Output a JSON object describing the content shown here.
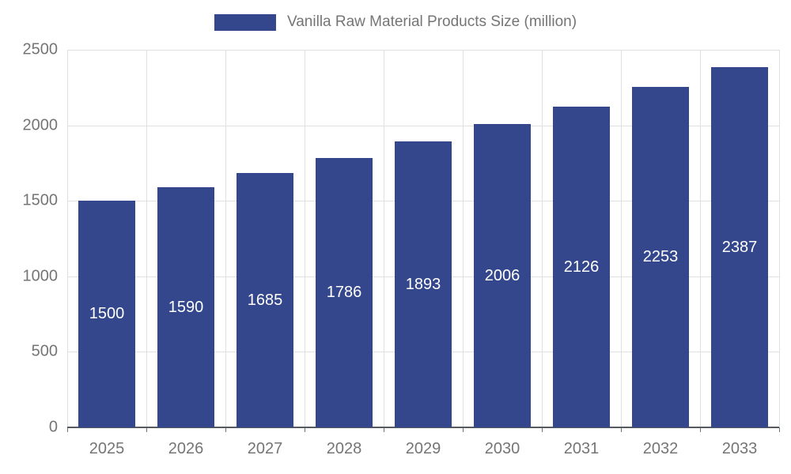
{
  "chart_data": {
    "type": "bar",
    "legend": "Vanilla Raw Material Products Size (million)",
    "categories": [
      "2025",
      "2026",
      "2027",
      "2028",
      "2029",
      "2030",
      "2031",
      "2032",
      "2033"
    ],
    "values": [
      1500,
      1590,
      1685,
      1786,
      1893,
      2006,
      2126,
      2253,
      2387
    ],
    "title": "",
    "xlabel": "",
    "ylabel": "",
    "ylim": [
      0,
      2500
    ],
    "yticks": [
      0,
      500,
      1000,
      1500,
      2000,
      2500
    ],
    "grid": true,
    "legend_position": "top",
    "colors": {
      "bar": "#35478c",
      "value_label": "#ffffff",
      "axis_text": "#757575",
      "gridline": "#e0e0e0",
      "axis_line": "#565a61",
      "tick": "#757575",
      "background": "#ffffff"
    }
  }
}
